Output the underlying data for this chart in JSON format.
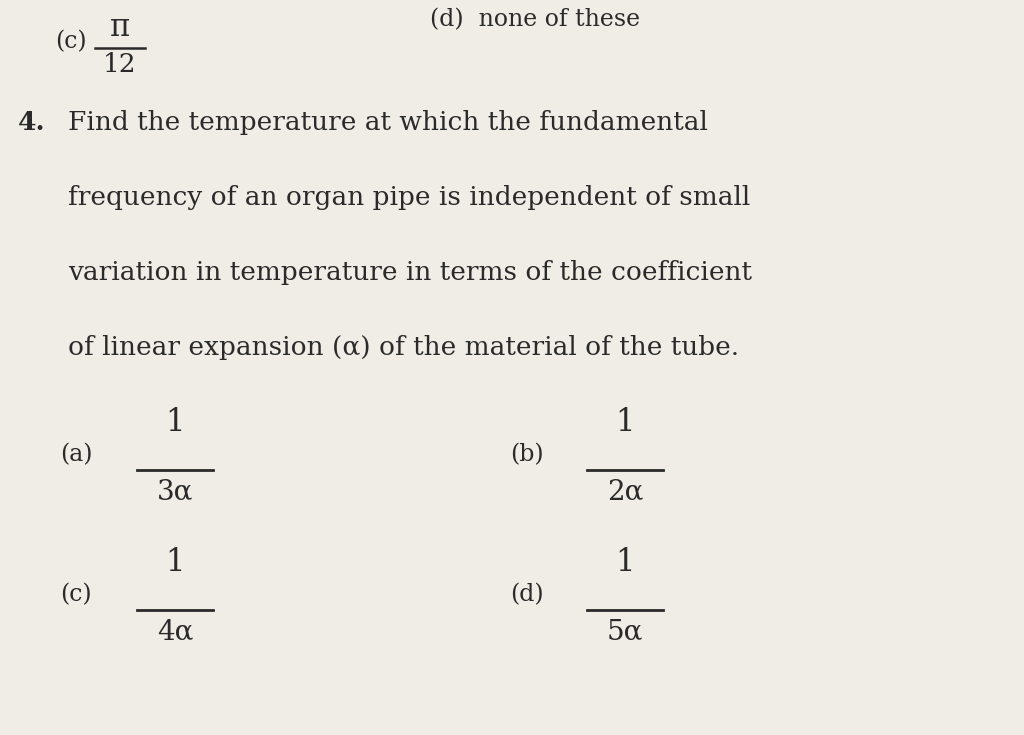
{
  "background_color": "#f0ede6",
  "text_color": "#2a2a2a",
  "fig_width": 10.24,
  "fig_height": 7.35,
  "dpi": 100,
  "top_left_label": "(c)",
  "top_left_fraction_num": "π",
  "top_left_fraction_den": "12",
  "top_right_text": "(d)  none of these",
  "question_number": "4.",
  "question_lines": [
    "Find the temperature at which the fundamental",
    "frequency of an organ pipe is independent of small",
    "variation in temperature in terms of the coefficient",
    "of linear expansion (α) of the material of the tube."
  ],
  "option_a_label": "(a)",
  "option_a_num": "1",
  "option_a_den": "3α",
  "option_b_label": "(b)",
  "option_b_num": "1",
  "option_b_den": "2α",
  "option_c_label": "(c)",
  "option_c_num": "1",
  "option_c_den": "4α",
  "option_d_label": "(d)",
  "option_d_num": "1",
  "option_d_den": "5α"
}
